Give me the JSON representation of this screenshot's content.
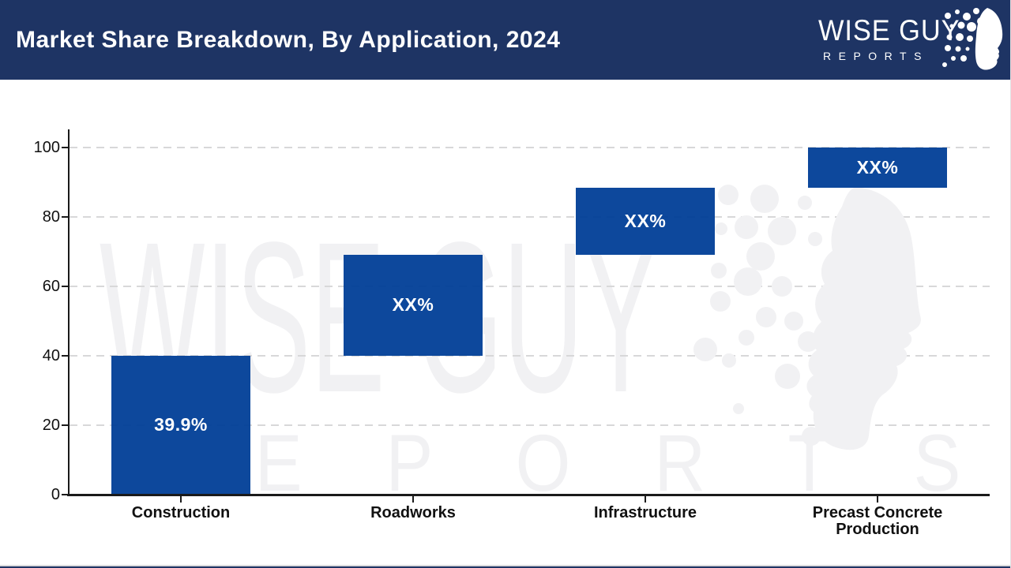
{
  "header": {
    "title": "Market Share Breakdown, By Application, 2024",
    "logo": {
      "line1": "WISE GUY",
      "line2": "REPORTS"
    }
  },
  "watermark": {
    "line1": "WISE GUY",
    "line2": "R E P O R T S"
  },
  "chart_data": {
    "type": "bar",
    "subtype": "waterfall",
    "title": "Market Share Breakdown, By Application, 2024",
    "categories": [
      "Construction",
      "Roadworks",
      "Infrastructure",
      "Precast Concrete Production"
    ],
    "segments": [
      {
        "category": "Construction",
        "label": "39.9%",
        "start": 0,
        "end": 39.9
      },
      {
        "category": "Roadworks",
        "label": "XX%",
        "start": 39.9,
        "end": 69
      },
      {
        "category": "Infrastructure",
        "label": "XX%",
        "start": 69,
        "end": 88.3
      },
      {
        "category": "Precast Concrete Production",
        "label": "XX%",
        "start": 88.3,
        "end": 100
      }
    ],
    "xlabel": "",
    "ylabel": "",
    "ylim": [
      0,
      100
    ],
    "yticks": [
      0,
      20,
      40,
      60,
      80,
      100
    ],
    "grid": "horizontal-dashed",
    "legend": "none",
    "bar_color": "#0d4a9e"
  },
  "colors": {
    "header_bg": "#1e3464",
    "bar_blue": "#0d4a9e",
    "grid_gray": "#d8d8d9",
    "watermark_gray": "#f1f1f3",
    "text_black": "#111111"
  }
}
